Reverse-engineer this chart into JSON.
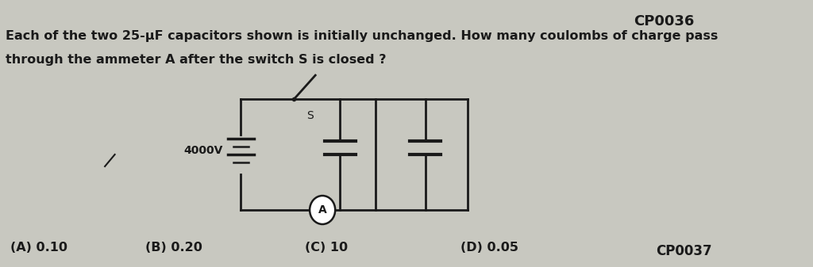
{
  "bg_color": "#c8c8c0",
  "title_text": "CP0036",
  "problem_line1": "Each of the two 25-μF capacitors shown is initially unchanged. How many coulombs of charge pass",
  "problem_line2": "through the ammeter A after the switch S is closed ?",
  "answers": [
    "(A) 0.10",
    "(B) 0.20",
    "(C) 10",
    "(D) 0.05"
  ],
  "footer_text": "CP0037",
  "voltage_label": "4000V",
  "switch_label": "S",
  "ammeter_label": "A",
  "text_color": "#1a1a1a",
  "circuit_color": "#1a1a1a",
  "bg_gradient_top": "#e8e8e0",
  "bg_gradient_bottom": "#b8b8b0"
}
